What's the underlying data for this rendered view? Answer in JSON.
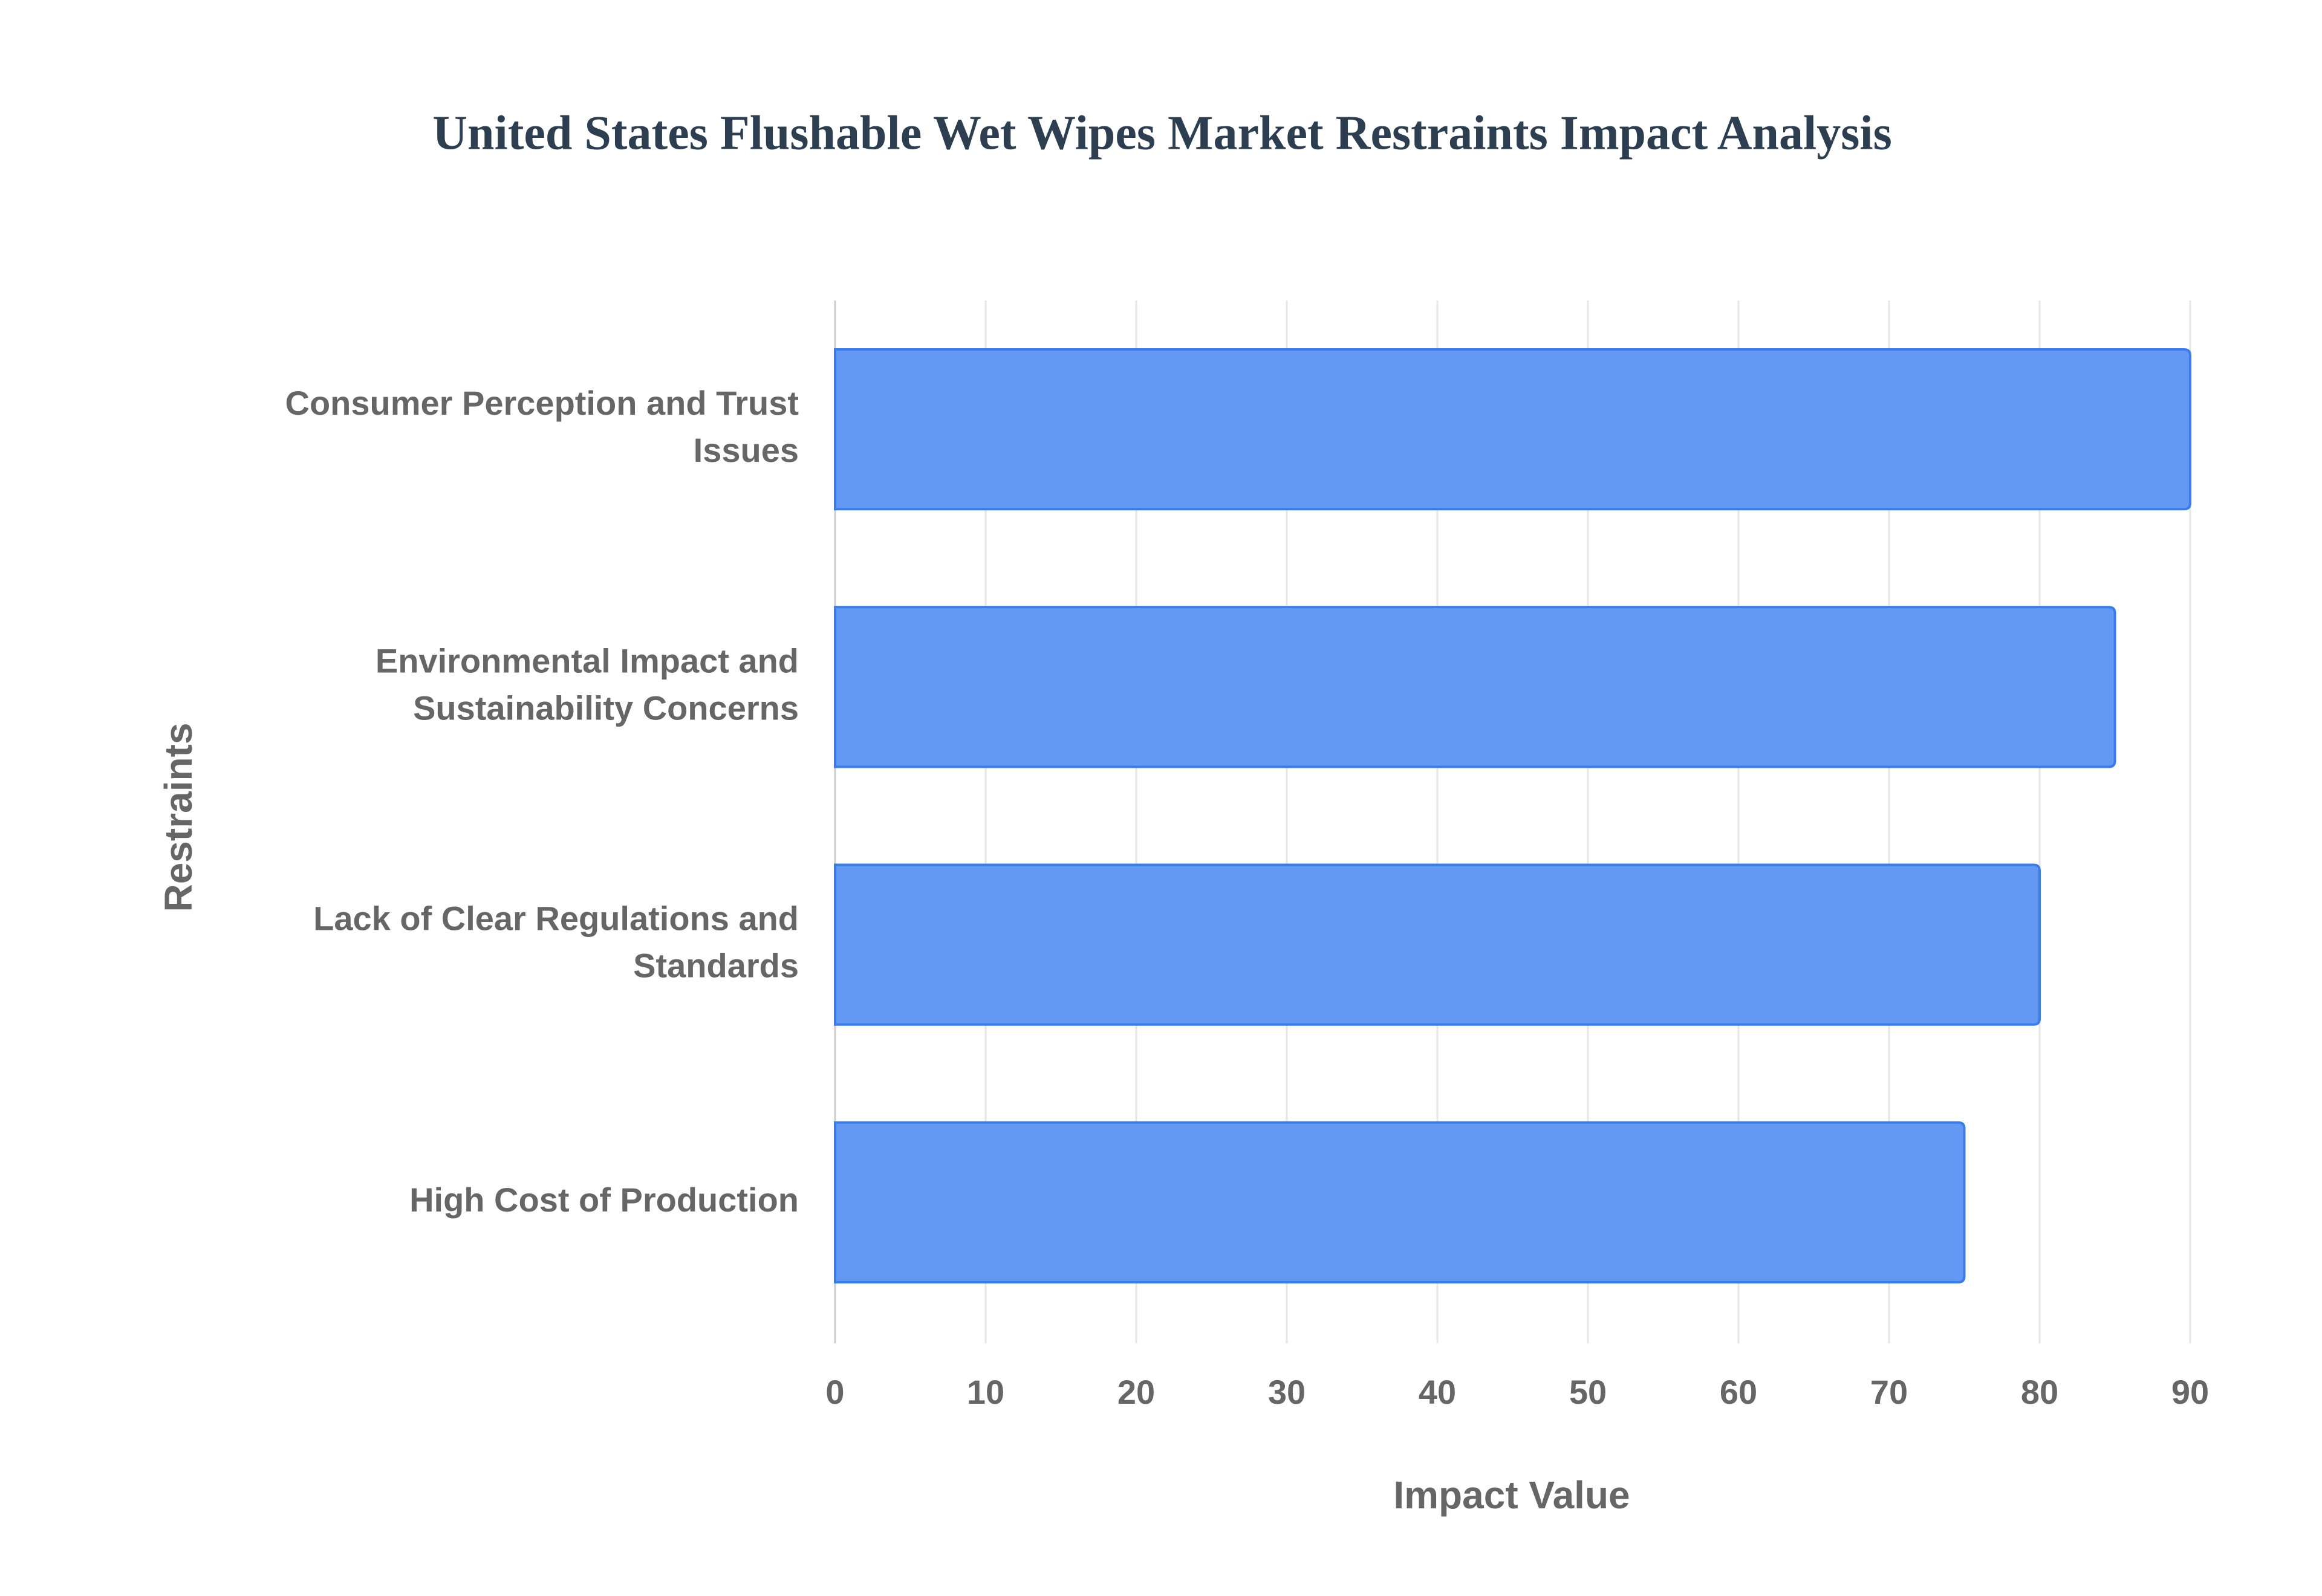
{
  "chart_data": {
    "type": "bar",
    "orientation": "horizontal",
    "title": "United States Flushable Wet Wipes Market Restraints Impact Analysis",
    "x_label": "Impact Value",
    "y_label": "Restraints",
    "categories": [
      "Consumer Perception and Trust Issues",
      "Environmental Impact and Sustainability Concerns",
      "Lack of Clear Regulations and Standards",
      "High Cost of Production"
    ],
    "values": [
      90,
      85,
      80,
      75
    ],
    "color": "#6399f5",
    "border_color": "#3b7de8",
    "xlim": [
      0,
      90
    ],
    "xticks": [
      0,
      10,
      20,
      30,
      40,
      50,
      60,
      70,
      80,
      90
    ],
    "grid": true
  }
}
